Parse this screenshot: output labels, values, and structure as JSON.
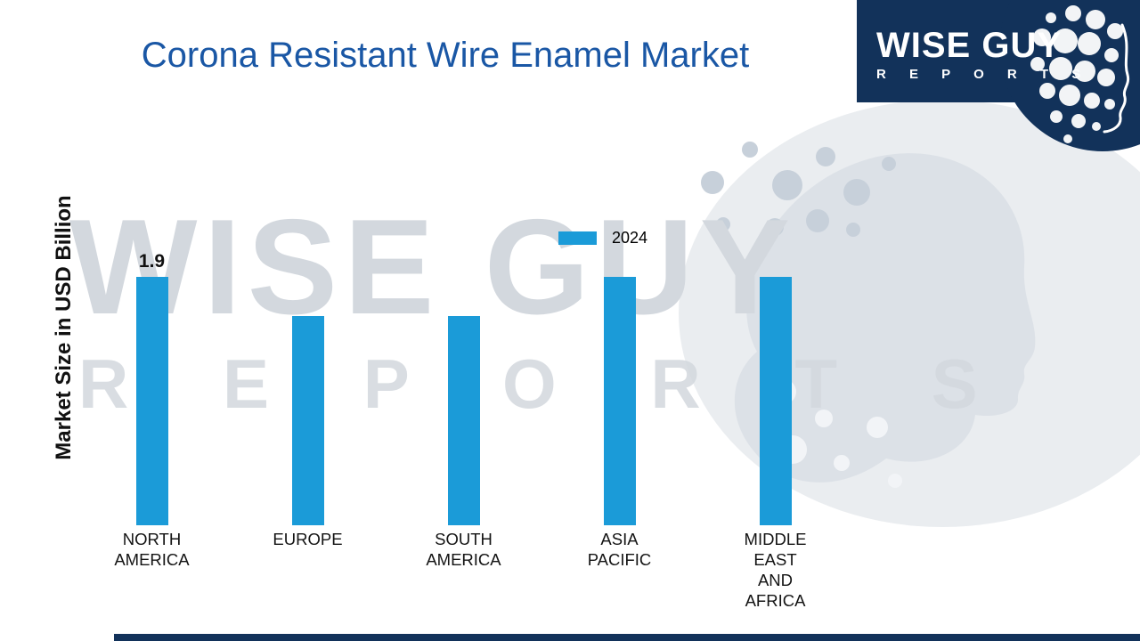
{
  "title": "Corona Resistant Wire Enamel Market",
  "logo": {
    "line1": "WISE GUY",
    "line2": "R E P O R T S"
  },
  "watermark": {
    "line1": "WISE GUY",
    "line2": "R E P O R T S"
  },
  "colors": {
    "bar": "#1b9bd8",
    "title": "#1a57a5",
    "navy": "#12325a",
    "watermark": "#d3d8de"
  },
  "chart_data": {
    "type": "bar",
    "title": "Corona Resistant Wire Enamel Market",
    "ylabel": "Market Size in USD Billion",
    "xlabel": "",
    "categories": [
      "NORTH AMERICA",
      "EUROPE",
      "SOUTH AMERICA",
      "ASIA PACIFIC",
      "MIDDLE EAST AND AFRICA"
    ],
    "values": [
      1.9,
      1.6,
      1.6,
      1.9,
      1.9
    ],
    "value_labels": [
      "1.9",
      "",
      "",
      "",
      ""
    ],
    "series": [
      {
        "name": "2024",
        "values": [
          1.9,
          1.6,
          1.6,
          1.9,
          1.9
        ]
      }
    ],
    "legend": [
      "2024"
    ],
    "legend_position": "top-center",
    "ylim": [
      0,
      2.0
    ],
    "grid": false,
    "bar_color": "#1b9bd8"
  }
}
